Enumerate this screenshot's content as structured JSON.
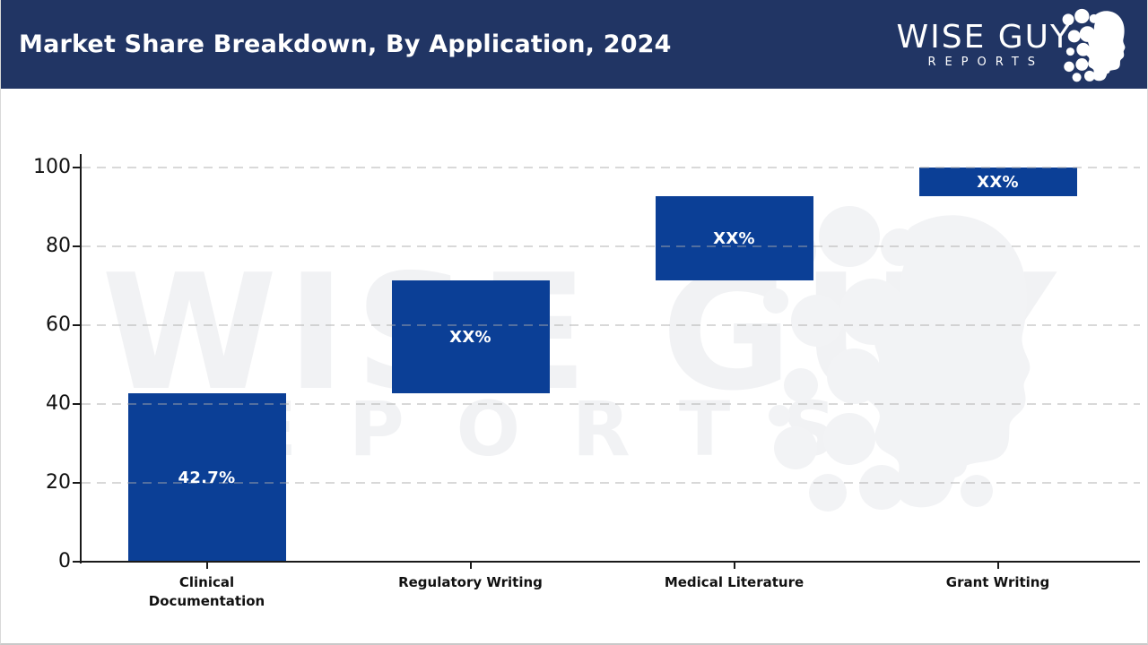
{
  "header": {
    "title": "Market Share Breakdown, By Application, 2024",
    "logo": {
      "line1": "WISE GUY",
      "line2": "REPORTS"
    }
  },
  "watermark": {
    "line1": "WISE GUY",
    "line2": "REPORTS"
  },
  "colors": {
    "header_bg": "#213564",
    "bar_blue": "#0b3f96",
    "bar_label_white": "#ffffff",
    "watermark_gray": "#f1f2f4",
    "grid_gray": "#d8d8d8",
    "axis_black": "#1a1a1a"
  },
  "chart_data": {
    "type": "bar",
    "subtype": "waterfall",
    "title": "Market Share Breakdown, By Application, 2024",
    "xlabel": "",
    "ylabel": "",
    "categories": [
      "Clinical Documentation",
      "Regulatory Writing",
      "Medical Literature",
      "Grant Writing"
    ],
    "segments": [
      {
        "category": "Clinical Documentation",
        "category_display": "Clinical\nDocumentation",
        "start": 0,
        "end": 42.7,
        "label": "42.7%"
      },
      {
        "category": "Regulatory Writing",
        "category_display": "Regulatory Writing",
        "start": 42.7,
        "end": 71.3,
        "label": "XX%"
      },
      {
        "category": "Medical Literature",
        "category_display": "Medical Literature",
        "start": 71.3,
        "end": 92.7,
        "label": "XX%"
      },
      {
        "category": "Grant Writing",
        "category_display": "Grant Writing",
        "start": 92.7,
        "end": 100,
        "label": "XX%"
      }
    ],
    "yticks": [
      0,
      20,
      40,
      60,
      80,
      100
    ],
    "ylim": [
      0,
      105
    ],
    "grid": "horizontal-dashed",
    "legend": "none",
    "bar_color": "#0b3f96",
    "label_color": "#ffffff"
  }
}
